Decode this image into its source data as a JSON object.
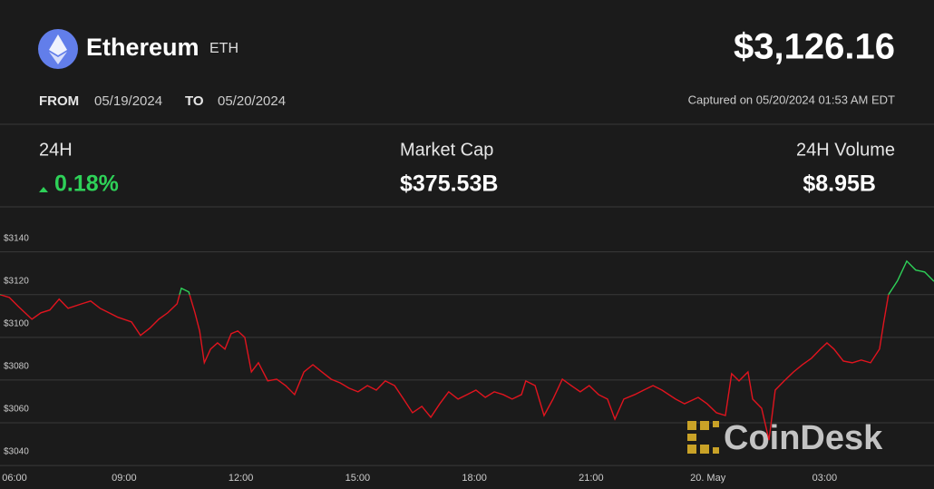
{
  "header": {
    "title": "Ethereum",
    "symbol": "ETH",
    "price": "$3,126.16",
    "from_label": "FROM",
    "from_date": "05/19/2024",
    "to_label": "TO",
    "to_date": "05/20/2024",
    "captured": "Captured on 05/20/2024 01:53 AM EDT"
  },
  "stats": [
    {
      "label": "24H",
      "value": "0.18%"
    },
    {
      "label": "Market Cap",
      "value": "$375.53B"
    },
    {
      "label": "24H Volume",
      "value": "$8.95B"
    }
  ],
  "watermark": "CoinDesk",
  "chart_data": {
    "type": "line",
    "x": [
      -0.19,
      0.05,
      0.28,
      0.63,
      0.86,
      1.09,
      1.33,
      1.56,
      1.91,
      2.14,
      2.38,
      2.61,
      2.84,
      3.19,
      3.42,
      3.66,
      3.89,
      4.12,
      4.36,
      4.47,
      4.66,
      4.82,
      4.94,
      5.06,
      5.22,
      5.4,
      5.59,
      5.75,
      5.92,
      6.1,
      6.27,
      6.45,
      6.69,
      6.92,
      7.15,
      7.38,
      7.62,
      7.85,
      8.08,
      8.32,
      8.55,
      8.78,
      9.01,
      9.25,
      9.48,
      9.71,
      9.95,
      10.18,
      10.41,
      10.65,
      10.88,
      11.11,
      11.34,
      11.58,
      11.81,
      12.04,
      12.28,
      12.51,
      12.74,
      12.97,
      13.21,
      13.32,
      13.56,
      13.79,
      14.02,
      14.26,
      14.49,
      14.72,
      14.95,
      15.19,
      15.42,
      15.61,
      15.84,
      16.12,
      16.35,
      16.59,
      16.82,
      17.17,
      17.4,
      17.75,
      17.98,
      18.22,
      18.45,
      18.61,
      18.8,
      19.03,
      19.15,
      19.38,
      19.57,
      19.73,
      19.96,
      20.2,
      20.43,
      20.66,
      20.89,
      21.06,
      21.24,
      21.48,
      21.71,
      21.94,
      22.18,
      22.41,
      22.52,
      22.64,
      22.87,
      23.11,
      23.34,
      23.57,
      23.81
    ],
    "values": [
      3120.0,
      3118.7,
      3114.5,
      3108.5,
      3111.5,
      3112.8,
      3117.9,
      3113.6,
      3115.7,
      3117.0,
      3113.6,
      3111.5,
      3109.4,
      3107.2,
      3100.9,
      3104.3,
      3108.5,
      3111.5,
      3115.7,
      3123.0,
      3121.3,
      3111.5,
      3103.0,
      3088.1,
      3094.5,
      3097.4,
      3094.5,
      3101.7,
      3103.0,
      3100.0,
      3083.8,
      3088.1,
      3079.6,
      3080.4,
      3077.4,
      3073.2,
      3083.8,
      3087.2,
      3083.8,
      3080.4,
      3078.7,
      3076.2,
      3074.5,
      3077.4,
      3075.3,
      3079.6,
      3077.4,
      3071.1,
      3064.7,
      3067.7,
      3062.6,
      3068.9,
      3074.5,
      3071.1,
      3073.2,
      3075.3,
      3071.9,
      3074.5,
      3073.2,
      3071.1,
      3073.2,
      3079.6,
      3077.4,
      3063.4,
      3071.1,
      3080.4,
      3077.4,
      3074.5,
      3077.4,
      3073.2,
      3071.1,
      3061.7,
      3071.1,
      3073.2,
      3075.3,
      3077.4,
      3075.3,
      3071.1,
      3068.9,
      3071.9,
      3068.9,
      3064.7,
      3063.4,
      3083.0,
      3079.6,
      3083.8,
      3071.1,
      3066.8,
      3051.9,
      3075.3,
      3079.6,
      3083.8,
      3087.2,
      3090.2,
      3094.5,
      3097.4,
      3094.5,
      3088.9,
      3088.1,
      3089.4,
      3088.1,
      3094.5,
      3107.2,
      3120.0,
      3126.4,
      3135.7,
      3131.5,
      3130.6,
      3126.2
    ],
    "color": "#e0141e",
    "up_color": "#2ed158",
    "xlim": [
      -0.19,
      23.81
    ],
    "xticks": [
      {
        "value": 0,
        "label": "06:00"
      },
      {
        "value": 3,
        "label": "09:00"
      },
      {
        "value": 6,
        "label": "12:00"
      },
      {
        "value": 9,
        "label": "15:00"
      },
      {
        "value": 12,
        "label": "18:00"
      },
      {
        "value": 15,
        "label": "21:00"
      },
      {
        "value": 18,
        "label": "20. May"
      },
      {
        "value": 21,
        "label": "03:00"
      }
    ],
    "ylim": [
      3029,
      3156
    ],
    "yticks": [
      {
        "value": 3040,
        "label": "$3040"
      },
      {
        "value": 3060,
        "label": "$3060"
      },
      {
        "value": 3080,
        "label": "$3080"
      },
      {
        "value": 3100,
        "label": "$3100"
      },
      {
        "value": 3120,
        "label": "$3120"
      },
      {
        "value": 3140,
        "label": "$3140"
      }
    ],
    "grid": true
  }
}
